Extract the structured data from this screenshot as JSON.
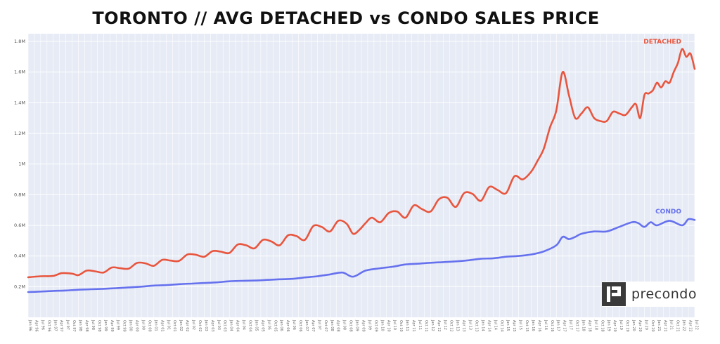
{
  "chart_data": {
    "type": "line",
    "title": "TORONTO // AVG DETACHED vs CONDO SALES PRICE",
    "xlabel": "",
    "ylabel": "",
    "ylim": [
      0,
      1800000
    ],
    "y_ticks": [
      {
        "value": 200000,
        "label": "0.2M"
      },
      {
        "value": 400000,
        "label": "0.4M"
      },
      {
        "value": 600000,
        "label": "0.6M"
      },
      {
        "value": 800000,
        "label": "0.8M"
      },
      {
        "value": 1000000,
        "label": "1M"
      },
      {
        "value": 1200000,
        "label": "1.2M"
      },
      {
        "value": 1400000,
        "label": "1.4M"
      },
      {
        "value": 1600000,
        "label": "1.6M"
      },
      {
        "value": 1800000,
        "label": "1.8M"
      }
    ],
    "x_range": [
      "1996-01",
      "2022-07"
    ],
    "x_ticks": [
      "Jan 96",
      "Apr 96",
      "Jul 96",
      "Oct 96",
      "Jan 97",
      "Apr 97",
      "Jul 97",
      "Oct 97",
      "Jan 98",
      "Apr 98",
      "Jul 98",
      "Oct 98",
      "Jan 99",
      "Apr 99",
      "Jul 99",
      "Oct 99",
      "Jan 00",
      "Apr 00",
      "Jul 00",
      "Oct 00",
      "Jan 01",
      "Apr 01",
      "Jul 01",
      "Oct 01",
      "Jan 02",
      "Apr 02",
      "Jul 02",
      "Oct 02",
      "Jan 03",
      "Apr 03",
      "Jul 03",
      "Oct 03",
      "Jan 04",
      "Apr 04",
      "Jul 04",
      "Oct 04",
      "Jan 05",
      "Apr 05",
      "Jul 05",
      "Oct 05",
      "Jan 06",
      "Apr 06",
      "Jul 06",
      "Oct 06",
      "Jan 07",
      "Apr 07",
      "Jul 07",
      "Oct 07",
      "Jan 08",
      "Apr 08",
      "Jul 08",
      "Oct 08",
      "Jan 09",
      "Apr 09",
      "Jul 09",
      "Oct 09",
      "Jan 10",
      "Apr 10",
      "Jul 10",
      "Oct 10",
      "Jan 11",
      "Apr 11",
      "Jul 11",
      "Oct 11",
      "Jan 12",
      "Apr 12",
      "Jul 12",
      "Oct 12",
      "Jan 13",
      "Apr 13",
      "Jul 13",
      "Oct 13",
      "Jan 14",
      "Apr 14",
      "Jul 14",
      "Oct 14",
      "Jan 15",
      "Apr 15",
      "Jul 15",
      "Oct 15",
      "Jan 16",
      "Apr 16",
      "Jul 16",
      "Oct 16",
      "Jan 17",
      "Apr 17",
      "Jul 17",
      "Oct 17",
      "Jan 18",
      "Apr 18",
      "Jul 18",
      "Oct 18",
      "Jan 19",
      "Apr 19",
      "Jul 19",
      "Oct 19",
      "Jan 20",
      "Apr 20",
      "Jul 20",
      "Oct 20",
      "Jan 21",
      "Apr 21",
      "Jul 21",
      "Oct 21",
      "Jan 22",
      "Apr 22",
      "Jul 22"
    ],
    "grid": true,
    "legend": "inline-labels",
    "series": [
      {
        "name": "DETACHED",
        "color": "#e8553e",
        "x": [
          "1996-01",
          "1996-07",
          "1997-01",
          "1997-05",
          "1997-10",
          "1998-01",
          "1998-05",
          "1998-09",
          "1999-01",
          "1999-05",
          "1999-09",
          "2000-01",
          "2000-05",
          "2000-09",
          "2001-01",
          "2001-05",
          "2001-09",
          "2002-01",
          "2002-05",
          "2002-09",
          "2003-01",
          "2003-05",
          "2003-09",
          "2004-01",
          "2004-05",
          "2004-09",
          "2005-01",
          "2005-05",
          "2005-09",
          "2006-01",
          "2006-05",
          "2006-09",
          "2007-01",
          "2007-05",
          "2007-09",
          "2008-01",
          "2008-05",
          "2008-09",
          "2008-12",
          "2009-03",
          "2009-06",
          "2009-09",
          "2010-01",
          "2010-05",
          "2010-09",
          "2011-01",
          "2011-05",
          "2011-09",
          "2012-01",
          "2012-05",
          "2012-09",
          "2013-01",
          "2013-05",
          "2013-09",
          "2014-01",
          "2014-05",
          "2014-09",
          "2015-01",
          "2015-05",
          "2015-09",
          "2016-01",
          "2016-04",
          "2016-07",
          "2016-10",
          "2017-01",
          "2017-04",
          "2017-07",
          "2017-10",
          "2018-01",
          "2018-04",
          "2018-07",
          "2018-10",
          "2019-01",
          "2019-04",
          "2019-07",
          "2019-10",
          "2020-01",
          "2020-03",
          "2020-05",
          "2020-07",
          "2020-09",
          "2020-11",
          "2021-01",
          "2021-03",
          "2021-05",
          "2021-07",
          "2021-09",
          "2021-11",
          "2022-01",
          "2022-03",
          "2022-05",
          "2022-07"
        ],
        "values": [
          261000,
          268000,
          270000,
          288000,
          285000,
          275000,
          305000,
          300000,
          292000,
          325000,
          320000,
          318000,
          355000,
          352000,
          336000,
          375000,
          370000,
          368000,
          410000,
          408000,
          395000,
          432000,
          428000,
          420000,
          475000,
          470000,
          450000,
          505000,
          495000,
          470000,
          535000,
          530000,
          505000,
          595000,
          590000,
          560000,
          630000,
          610000,
          545000,
          570000,
          615000,
          650000,
          620000,
          680000,
          690000,
          650000,
          730000,
          705000,
          690000,
          770000,
          780000,
          720000,
          810000,
          805000,
          760000,
          850000,
          830000,
          810000,
          920000,
          900000,
          950000,
          1020000,
          1100000,
          1240000,
          1350000,
          1600000,
          1450000,
          1300000,
          1330000,
          1370000,
          1300000,
          1280000,
          1280000,
          1340000,
          1330000,
          1320000,
          1370000,
          1390000,
          1300000,
          1450000,
          1460000,
          1480000,
          1530000,
          1500000,
          1540000,
          1530000,
          1600000,
          1660000,
          1750000,
          1700000,
          1720000,
          1620000
        ]
      },
      {
        "name": "CONDO",
        "color": "#6671ee",
        "x": [
          "1996-01",
          "1996-07",
          "1997-01",
          "1997-07",
          "1998-01",
          "1998-07",
          "1999-01",
          "1999-07",
          "2000-01",
          "2000-07",
          "2001-01",
          "2001-07",
          "2002-01",
          "2002-07",
          "2003-01",
          "2003-07",
          "2004-01",
          "2004-07",
          "2005-01",
          "2005-07",
          "2006-01",
          "2006-07",
          "2007-01",
          "2007-07",
          "2008-01",
          "2008-07",
          "2008-12",
          "2009-06",
          "2010-01",
          "2010-07",
          "2011-01",
          "2011-07",
          "2012-01",
          "2012-07",
          "2013-01",
          "2013-07",
          "2014-01",
          "2014-07",
          "2015-01",
          "2015-07",
          "2016-01",
          "2016-07",
          "2017-01",
          "2017-04",
          "2017-07",
          "2017-10",
          "2018-01",
          "2018-07",
          "2019-01",
          "2019-07",
          "2020-01",
          "2020-04",
          "2020-07",
          "2020-10",
          "2021-01",
          "2021-07",
          "2022-01",
          "2022-04",
          "2022-07"
        ],
        "values": [
          165000,
          168000,
          172000,
          175000,
          180000,
          183000,
          186000,
          190000,
          195000,
          200000,
          207000,
          210000,
          216000,
          220000,
          224000,
          228000,
          235000,
          238000,
          240000,
          244000,
          248000,
          251000,
          260000,
          268000,
          280000,
          292000,
          265000,
          305000,
          320000,
          330000,
          345000,
          350000,
          356000,
          360000,
          365000,
          372000,
          382000,
          385000,
          395000,
          400000,
          410000,
          430000,
          470000,
          525000,
          510000,
          525000,
          545000,
          560000,
          560000,
          590000,
          620000,
          615000,
          590000,
          620000,
          600000,
          630000,
          600000,
          640000,
          635000
        ]
      }
    ]
  },
  "watermark": {
    "text": "precondo",
    "icon": "precondo-logo-icon"
  }
}
